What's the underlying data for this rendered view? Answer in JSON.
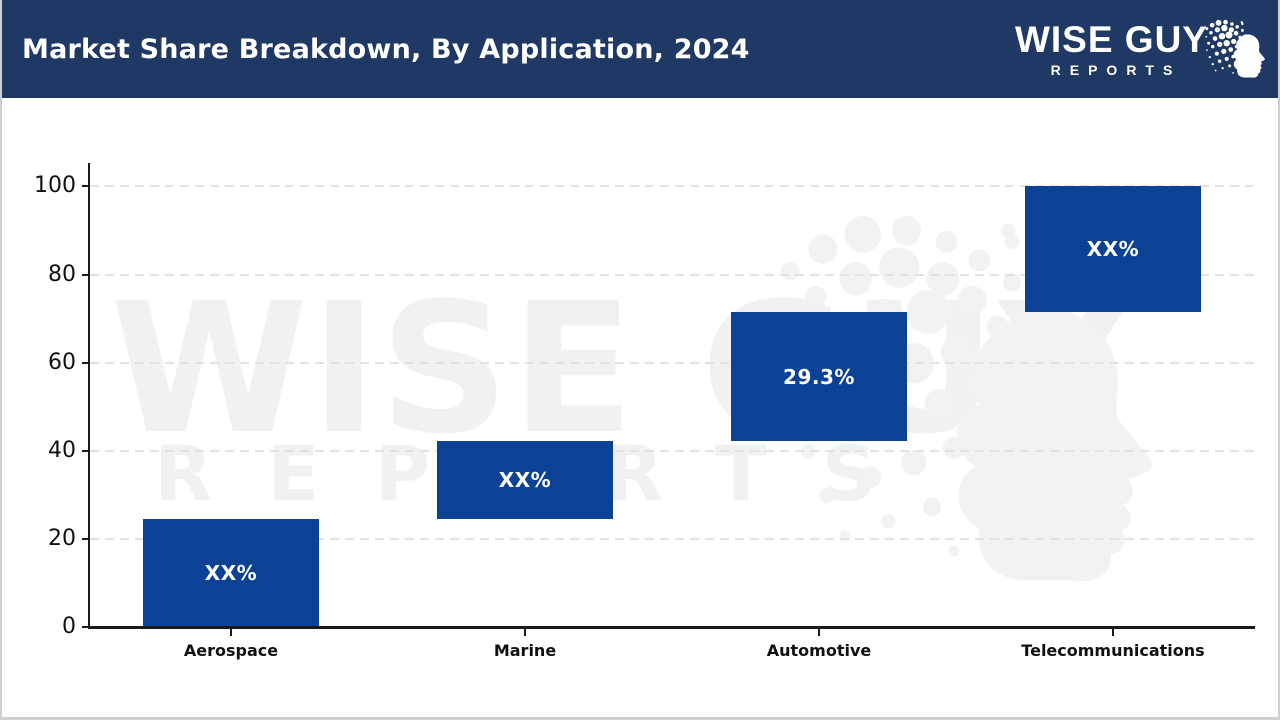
{
  "header": {
    "title": "Market Share Breakdown, By Application, 2024",
    "logo": {
      "line1": "WISE GUY",
      "line2": "REPORTS"
    }
  },
  "watermark": {
    "text_large": "WISE GUY",
    "text_small": "REPORTS"
  },
  "chart_data": {
    "type": "bar",
    "subtype": "waterfall-floating-bars",
    "title": "Market Share Breakdown, By Application, 2024",
    "categories": [
      "Aerospace",
      "Marine",
      "Automotive",
      "Telecommunications"
    ],
    "segments": [
      {
        "category": "Aerospace",
        "start": 0,
        "end": 24.5,
        "label": "XX%"
      },
      {
        "category": "Marine",
        "start": 24.5,
        "end": 42.2,
        "label": "XX%"
      },
      {
        "category": "Automotive",
        "start": 42.2,
        "end": 71.5,
        "label": "29.3%"
      },
      {
        "category": "Telecommunications",
        "start": 71.5,
        "end": 100,
        "label": "XX%"
      }
    ],
    "ytick_labels": [
      "0",
      "20",
      "40",
      "60",
      "80",
      "100"
    ],
    "yticks": [
      0,
      20,
      40,
      60,
      80,
      100
    ],
    "ylim": [
      0,
      105
    ],
    "xlabel": "",
    "ylabel": "",
    "grid": "horizontal-dashed",
    "legend": "none",
    "bar_color": "#0b4296",
    "bar_label_color": "#ffffff"
  },
  "colors": {
    "header_bg": "#1f3864",
    "header_text": "#ffffff",
    "bar": "#0b4296",
    "grid": "#e2e2e2",
    "axis": "#1a1a1a",
    "tick_text": "#111111",
    "watermark": "#f1f1f1",
    "page_border": "#cfcfcf"
  }
}
